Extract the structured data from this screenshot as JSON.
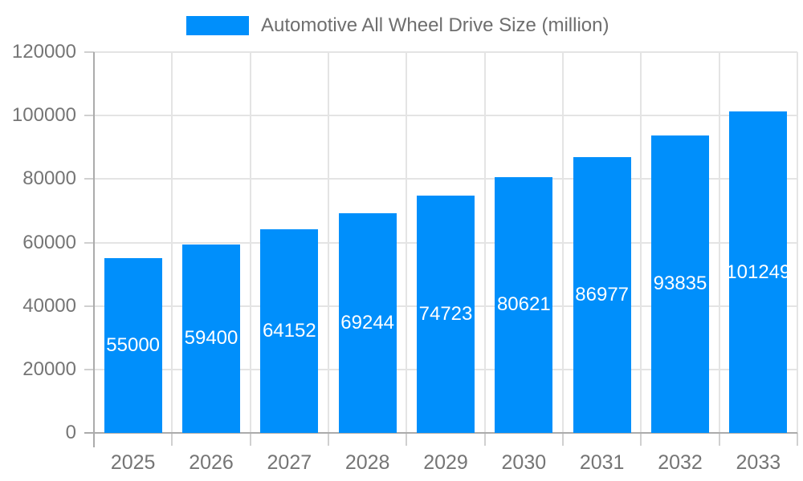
{
  "chart_data": {
    "type": "bar",
    "title": "Automotive All Wheel Drive Size (million)",
    "legend_position": "top-center",
    "categories": [
      "2025",
      "2026",
      "2027",
      "2028",
      "2029",
      "2030",
      "2031",
      "2032",
      "2033"
    ],
    "values": [
      55000,
      59400,
      64152,
      69244,
      74723,
      80621,
      86977,
      93835,
      101249
    ],
    "bar_value_labels": [
      "55000",
      "59400",
      "64152",
      "69244",
      "74723",
      "80621",
      "86977",
      "93835",
      "101249"
    ],
    "bar_value_label_position": "inside-center",
    "ylim": [
      0,
      120000
    ],
    "yticks": [
      0,
      20000,
      40000,
      60000,
      80000,
      100000,
      120000
    ],
    "xlabel": "",
    "ylabel": "",
    "grid": "on",
    "colors": {
      "bar": "#008FFB",
      "gridline": "#e4e4e4",
      "axis_line": "#ababab",
      "tick": "#d0d0d0",
      "axis_text": "#757575",
      "legend_text": "#6e6e6e",
      "value_text": "#ffffff",
      "background": "#ffffff"
    }
  }
}
